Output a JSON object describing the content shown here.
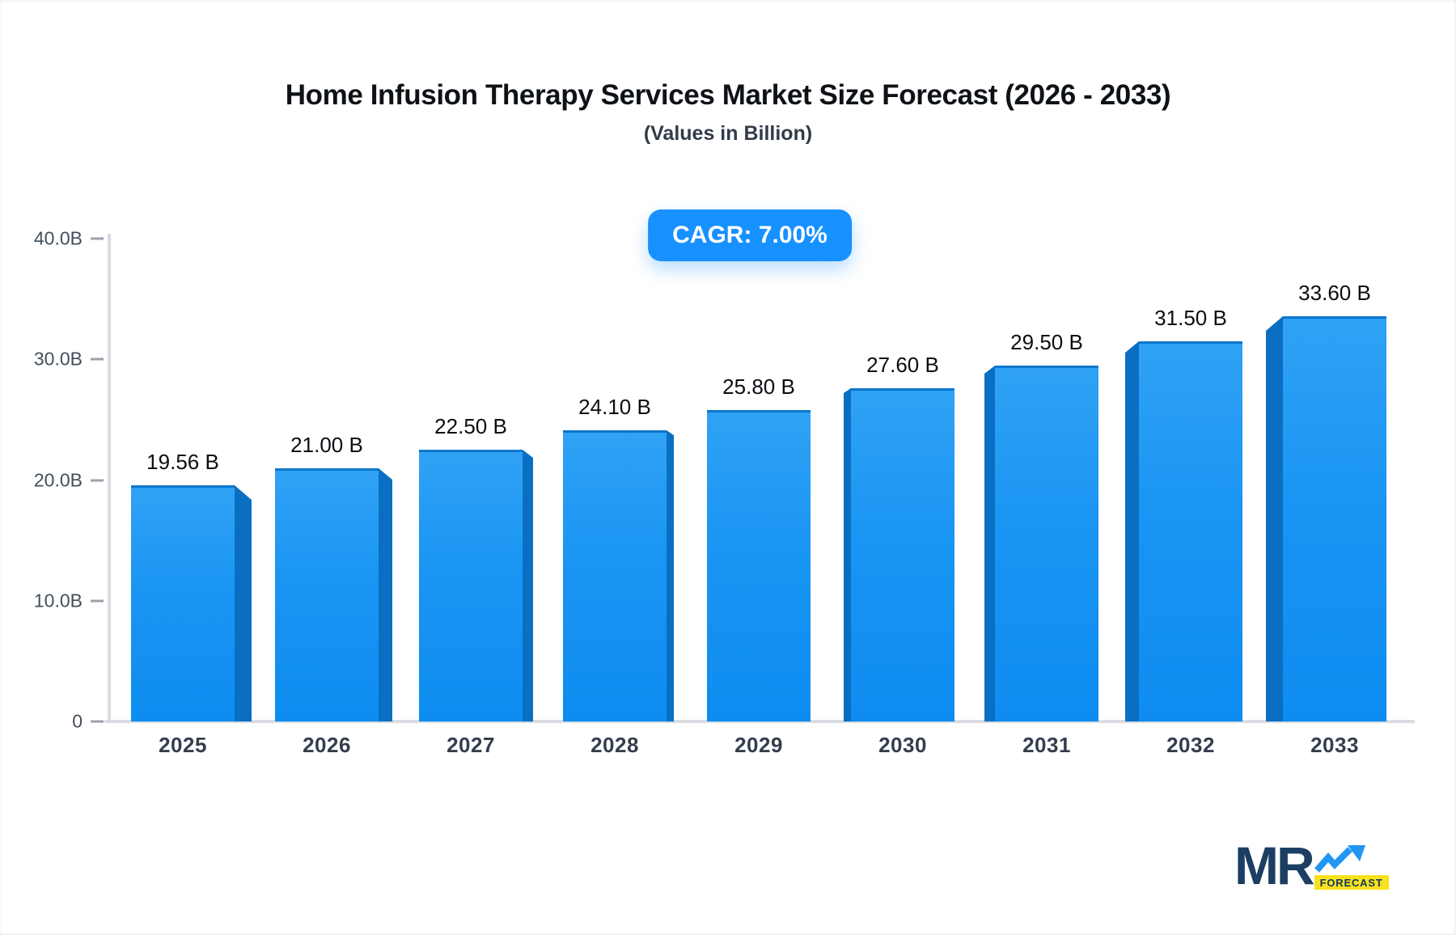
{
  "title": "Home Infusion Therapy Services Market Size Forecast (2026 - 2033)",
  "subtitle": "(Values in Billion)",
  "badge": {
    "label": "CAGR: 7.00%"
  },
  "chart_data": {
    "type": "bar",
    "title": "Home Infusion Therapy Services Market Size Forecast (2026 - 2033)",
    "subtitle": "(Values in Billion)",
    "categories": [
      "2025",
      "2026",
      "2027",
      "2028",
      "2029",
      "2030",
      "2031",
      "2032",
      "2033"
    ],
    "values": [
      19.56,
      21.0,
      22.5,
      24.1,
      25.8,
      27.6,
      29.5,
      31.5,
      33.6
    ],
    "value_labels": [
      "19.56 B",
      "21.00 B",
      "22.50 B",
      "24.10 B",
      "25.80 B",
      "27.60 B",
      "29.50 B",
      "31.50 B",
      "33.60 B"
    ],
    "xlabel": "",
    "ylabel": "",
    "ylim": [
      0,
      40
    ],
    "ytick_labels": [
      "40.0B",
      "30.0B",
      "20.0B",
      "10.0B",
      "0"
    ],
    "ytick_values": [
      40,
      30,
      20,
      10,
      0
    ],
    "grid": false,
    "legend": false,
    "annotation": "CAGR: 7.00%"
  },
  "colors": {
    "bar_face_top": "#30a2f5",
    "bar_face_bottom": "#0e8cf0",
    "bar_side": "#0a6fc2",
    "bar_top_edge": "#0c77cc",
    "badge_bg": "#1791ff",
    "badge_text": "#ffffff",
    "axis_line": "#d9dce0",
    "tick_text": "#434e5b",
    "year_text": "#333e4c",
    "title_text": "#0e1217",
    "logo_navy": "#1c3e63",
    "logo_arrow_blue": "#2196f3",
    "logo_tag_yellow": "#f8e11d"
  },
  "logo": {
    "text": "MR",
    "tag": "FORECAST"
  }
}
